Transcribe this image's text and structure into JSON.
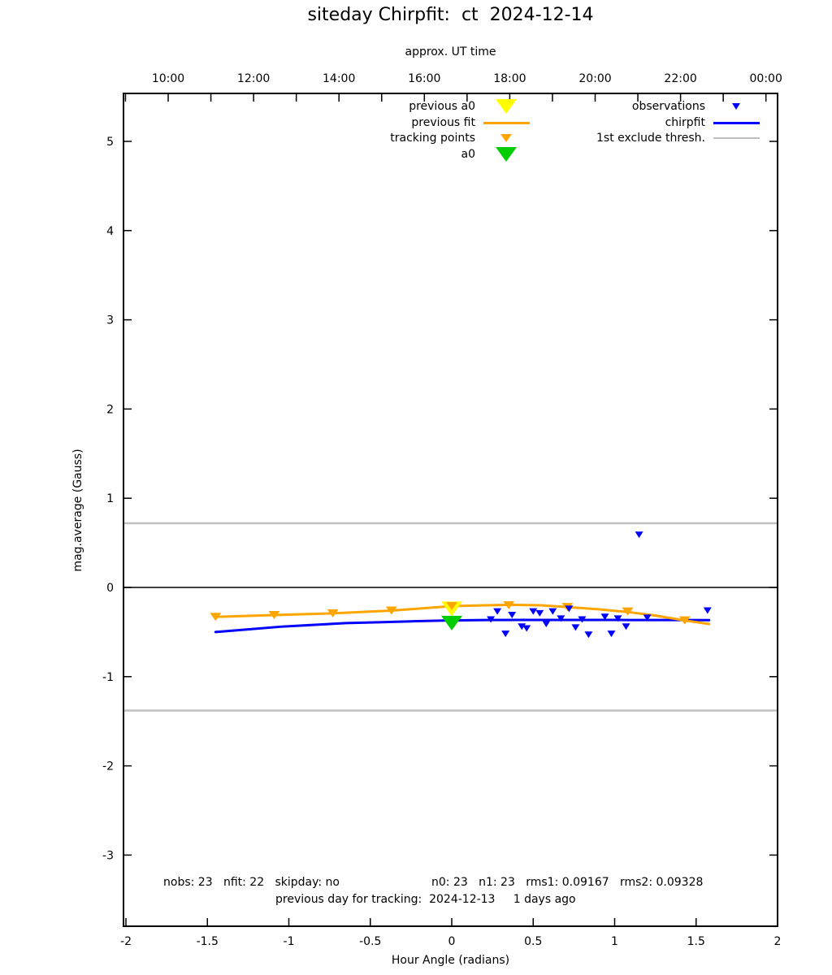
{
  "chart_data": {
    "type": "scatter",
    "title": "siteday Chirpfit:  ct  2024-12-14",
    "xlabel": "Hour Angle (radians)",
    "ylabel": "mag.average (Gauss)",
    "x2label": "approx. UT time",
    "xlim": [
      -2,
      2
    ],
    "ylim": [
      -3.8,
      5.54
    ],
    "grid": "off",
    "legend_position": "top-inside",
    "x_ticks": {
      "values": [
        -2,
        -1.5,
        -1,
        -0.5,
        0,
        0.5,
        1,
        1.5,
        2
      ],
      "labels": [
        "-2",
        "-1.5",
        "-1",
        "-0.5",
        "0",
        "0.5",
        "1",
        "1.5",
        "2"
      ]
    },
    "y_ticks": {
      "values": [
        5,
        4,
        3,
        2,
        1,
        0,
        -1,
        -2,
        -3
      ],
      "labels": [
        "5",
        "4",
        "3",
        "2",
        "1",
        "0",
        "-1",
        "-2",
        "-3"
      ]
    },
    "x2_ticks": {
      "labeled_hours": [
        10,
        12,
        14,
        16,
        18,
        20,
        22,
        24
      ],
      "labels": [
        "10:00",
        "12:00",
        "14:00",
        "16:00",
        "18:00",
        "20:00",
        "22:00",
        "00:00"
      ],
      "minor_hours": [
        9,
        10,
        11,
        12,
        13,
        14,
        15,
        16,
        17,
        18,
        19,
        20,
        21,
        22,
        23,
        24
      ]
    },
    "zero_line": {
      "value": 0,
      "color": "#000000"
    },
    "series": [
      {
        "name": "1st exclude thresh.",
        "kind": "hline",
        "color": "#c0c0c0",
        "values": [
          0.72,
          -1.38
        ]
      },
      {
        "name": "chirpfit",
        "kind": "line",
        "color": "#0000ff",
        "points": [
          [
            -1.45,
            -0.5
          ],
          [
            -1.25,
            -0.47
          ],
          [
            -1.05,
            -0.44
          ],
          [
            -0.85,
            -0.42
          ],
          [
            -0.65,
            -0.4
          ],
          [
            -0.45,
            -0.39
          ],
          [
            -0.25,
            -0.38
          ],
          [
            -0.05,
            -0.371
          ],
          [
            0.2,
            -0.366
          ],
          [
            0.5,
            -0.364
          ],
          [
            0.8,
            -0.364
          ],
          [
            1.1,
            -0.365
          ],
          [
            1.35,
            -0.366
          ],
          [
            1.58,
            -0.367
          ]
        ]
      },
      {
        "name": "previous fit",
        "kind": "line",
        "color": "#ffa500",
        "points": [
          [
            -1.45,
            -0.33
          ],
          [
            -1.09,
            -0.31
          ],
          [
            -0.73,
            -0.29
          ],
          [
            -0.37,
            -0.26
          ],
          [
            0.0,
            -0.21
          ],
          [
            0.2,
            -0.2
          ],
          [
            0.38,
            -0.195
          ],
          [
            0.55,
            -0.2
          ],
          [
            0.71,
            -0.22
          ],
          [
            0.9,
            -0.245
          ],
          [
            1.08,
            -0.275
          ],
          [
            1.25,
            -0.315
          ],
          [
            1.43,
            -0.37
          ],
          [
            1.58,
            -0.41
          ]
        ]
      },
      {
        "name": "previous a0",
        "kind": "points",
        "marker": "triangle-down",
        "size": "large",
        "color": "#ffff00",
        "points": [
          [
            0.0,
            -0.24
          ]
        ]
      },
      {
        "name": "tracking points",
        "kind": "points",
        "marker": "triangle-down",
        "size": "small",
        "color": "#ffa500",
        "points": [
          [
            -1.45,
            -0.33
          ],
          [
            -1.09,
            -0.31
          ],
          [
            -0.73,
            -0.29
          ],
          [
            -0.37,
            -0.26
          ],
          [
            0.0,
            -0.21
          ],
          [
            0.35,
            -0.2
          ],
          [
            0.71,
            -0.22
          ],
          [
            1.08,
            -0.27
          ],
          [
            1.43,
            -0.37
          ]
        ]
      },
      {
        "name": "a0",
        "kind": "points",
        "marker": "triangle-down",
        "size": "large",
        "color": "#00cc00",
        "points": [
          [
            0.0,
            -0.4
          ]
        ]
      },
      {
        "name": "observations",
        "kind": "points",
        "marker": "triangle-down",
        "size": "small",
        "color": "#0000ff",
        "points": [
          [
            0.24,
            -0.36
          ],
          [
            0.28,
            -0.27
          ],
          [
            0.33,
            -0.52
          ],
          [
            0.37,
            -0.31
          ],
          [
            0.43,
            -0.44
          ],
          [
            0.46,
            -0.46
          ],
          [
            0.5,
            -0.27
          ],
          [
            0.54,
            -0.29
          ],
          [
            0.58,
            -0.41
          ],
          [
            0.62,
            -0.27
          ],
          [
            0.67,
            -0.35
          ],
          [
            0.72,
            -0.24
          ],
          [
            0.76,
            -0.45
          ],
          [
            0.8,
            -0.36
          ],
          [
            0.84,
            -0.53
          ],
          [
            0.94,
            -0.33
          ],
          [
            0.98,
            -0.52
          ],
          [
            1.02,
            -0.35
          ],
          [
            1.07,
            -0.44
          ],
          [
            1.15,
            0.59
          ],
          [
            1.2,
            -0.34
          ],
          [
            1.57,
            -0.26
          ]
        ]
      }
    ]
  },
  "legend": {
    "left": [
      {
        "label": "previous a0",
        "color": "#ffff00",
        "glyph": "triangle-large"
      },
      {
        "label": "previous fit",
        "color": "#ffa500",
        "glyph": "line"
      },
      {
        "label": "tracking points",
        "color": "#ffa500",
        "glyph": "triangle-small"
      },
      {
        "label": "a0",
        "color": "#00cc00",
        "glyph": "triangle-large"
      }
    ],
    "right": [
      {
        "label": "observations",
        "color": "#0000ff",
        "glyph": "triangle-small"
      },
      {
        "label": "chirpfit",
        "color": "#0000ff",
        "glyph": "line"
      },
      {
        "label": "1st exclude thresh.",
        "color": "#c0c0c0",
        "glyph": "line"
      }
    ]
  },
  "stats": {
    "line1_left": "nobs: 23   nfit: 22   skipday: no",
    "line1_right": "n0: 23   n1: 23   rms1: 0.09167   rms2: 0.09328",
    "line2": "previous day for tracking:  2024-12-13     1 days ago"
  }
}
